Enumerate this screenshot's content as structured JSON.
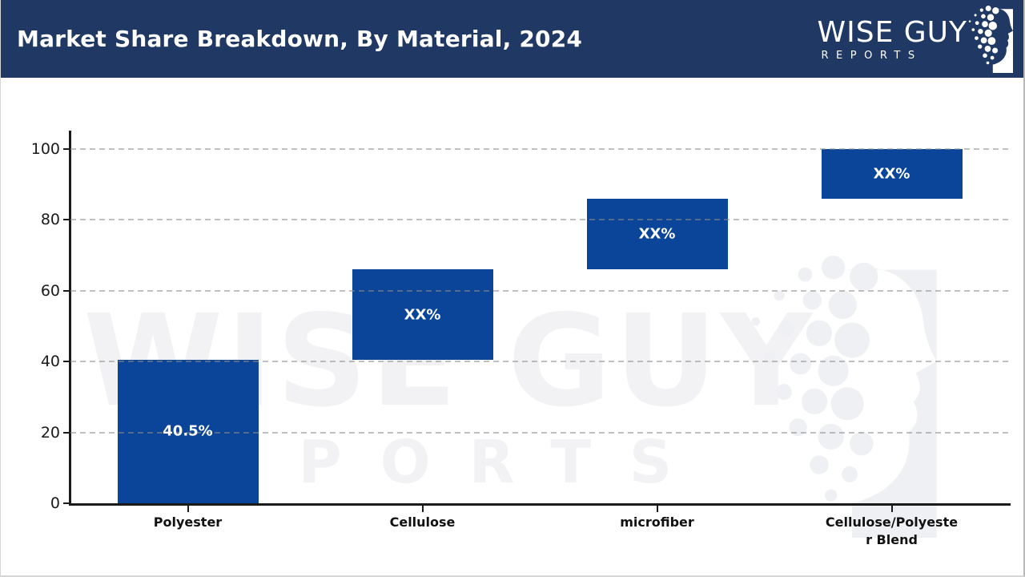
{
  "header": {
    "title": "Market Share Breakdown, By Material, 2024",
    "logo": {
      "name": "WISE GUY",
      "tagline": "REPORTS"
    }
  },
  "watermark": {
    "line1": "WISE GUY",
    "line2": "REPORTS"
  },
  "chart_data": {
    "type": "bar",
    "subtype": "waterfall",
    "title": "Market Share Breakdown, By Material, 2024",
    "categories": [
      "Polyester",
      "Cellulose",
      "microfiber",
      "Cellulose/Polyester Blend"
    ],
    "x_tick_lines": [
      [
        "Polyester"
      ],
      [
        "Cellulose"
      ],
      [
        "microfiber"
      ],
      [
        "Cellulose/Polyeste",
        "r Blend"
      ]
    ],
    "series": [
      {
        "name": "Market share (%)",
        "points": [
          {
            "category": "Polyester",
            "start": 0,
            "end": 40.5,
            "label": "40.5%"
          },
          {
            "category": "Cellulose",
            "start": 40.5,
            "end": 66,
            "label": "XX%"
          },
          {
            "category": "microfiber",
            "start": 66,
            "end": 86,
            "label": "XX%"
          },
          {
            "category": "Cellulose/Polyester Blend",
            "start": 86,
            "end": 100,
            "label": "XX%"
          }
        ]
      }
    ],
    "xlabel": "",
    "ylabel": "",
    "ylim": [
      0,
      105
    ],
    "yticks": [
      0,
      20,
      40,
      60,
      80,
      100
    ],
    "grid": "horizontal-dashed-overlay",
    "legend": "none",
    "colors": {
      "bar": "#0A4599",
      "bar_label": "#FFFFFF",
      "header_bg": "#1F3864",
      "grid": "#C9C9C9",
      "axis": "#1A1A1A",
      "watermark": "#F2F2F4"
    }
  }
}
